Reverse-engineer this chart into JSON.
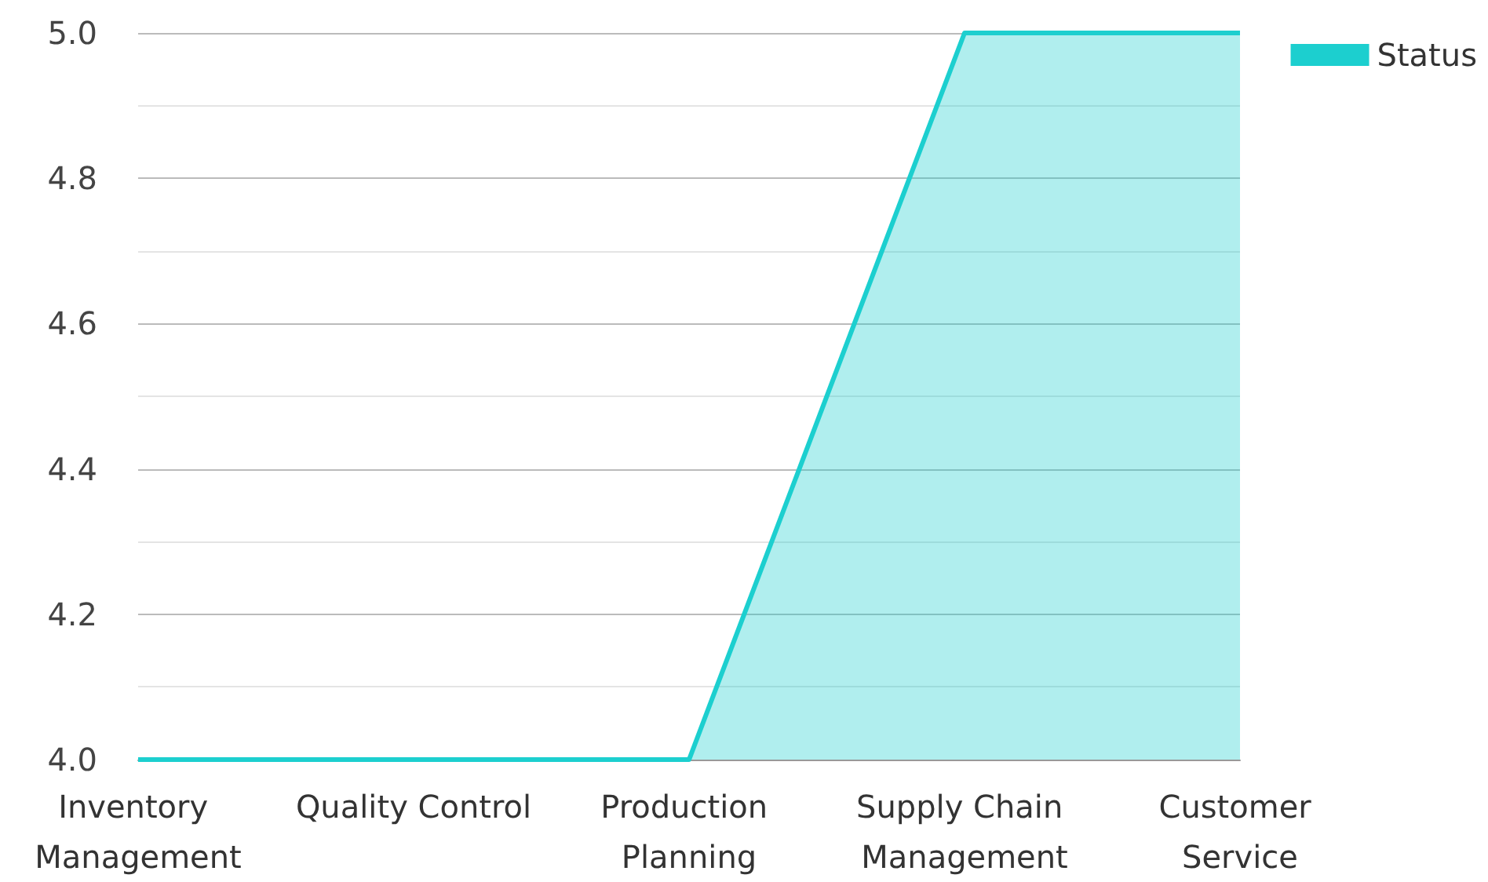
{
  "chart_data": {
    "type": "area",
    "categories": [
      "Inventory Management",
      "Quality Control",
      "Production Planning",
      "Supply Chain Management",
      "Customer Service"
    ],
    "series": [
      {
        "name": "Status",
        "color": "#1ccfcf",
        "values": [
          4,
          4,
          4,
          5,
          5
        ]
      }
    ],
    "ylim": [
      4,
      5
    ],
    "yticks": [
      {
        "value": 4,
        "label": "4.0"
      },
      {
        "value": 4.2,
        "label": "4.2"
      },
      {
        "value": 4.4,
        "label": "4.4"
      },
      {
        "value": 4.6,
        "label": "4.6"
      },
      {
        "value": 4.8,
        "label": "4.8"
      },
      {
        "value": 5,
        "label": "5.0"
      }
    ],
    "grid": "y",
    "legend": "top right",
    "marker": "none",
    "line_style": "solid"
  }
}
